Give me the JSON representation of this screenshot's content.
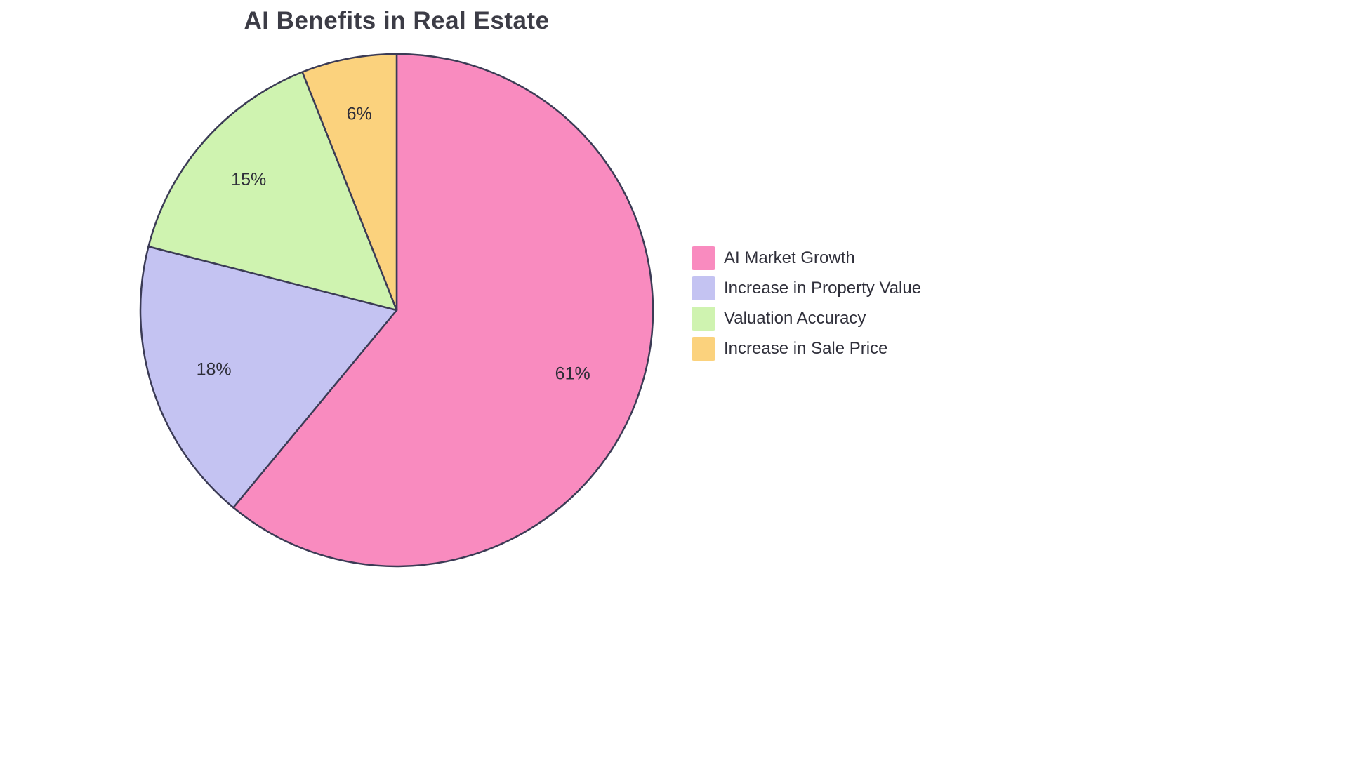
{
  "chart_data": {
    "type": "pie",
    "title": "AI Benefits in Real Estate",
    "labels": [
      "AI Market Growth",
      "Increase in Property Value",
      "Valuation Accuracy",
      "Increase in Sale Price"
    ],
    "values": [
      61,
      18,
      15,
      6
    ],
    "value_labels": [
      "61%",
      "18%",
      "15%",
      "6%"
    ],
    "colors": [
      "#F98BBF",
      "#C4C3F2",
      "#CFF3B0",
      "#FBD27D"
    ],
    "stroke_color": "#3B3B55",
    "label_color": "#2E2E38",
    "background": "#FFFFFF",
    "legend_position": "right",
    "start_angle_deg": -90,
    "direction": "clockwise",
    "label_radius": [
      0.73,
      0.75,
      0.77,
      0.78
    ]
  }
}
